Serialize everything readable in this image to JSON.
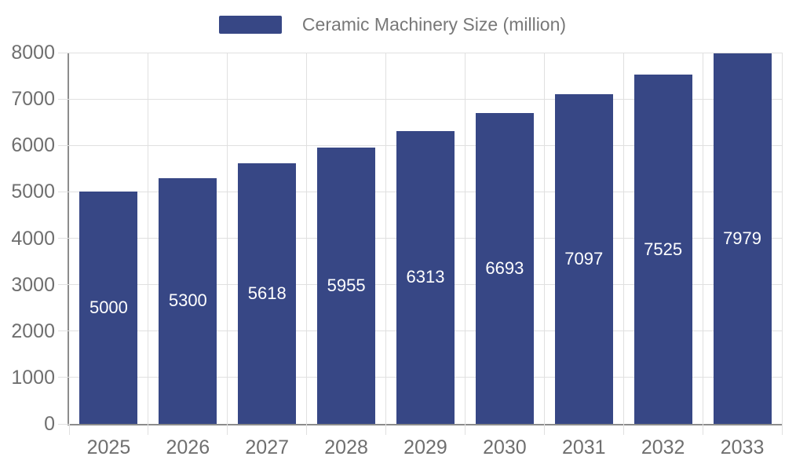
{
  "chart_data": {
    "type": "bar",
    "title": "Ceramic Machinery Size (million)",
    "categories": [
      "2025",
      "2026",
      "2027",
      "2028",
      "2029",
      "2030",
      "2031",
      "2032",
      "2033"
    ],
    "values": [
      5000,
      5300,
      5618,
      5955,
      6313,
      6693,
      7097,
      7525,
      7979
    ],
    "value_labels": [
      "5000",
      "5300",
      "5618",
      "5955",
      "6313",
      "6693",
      "7097",
      "7525",
      "7979"
    ],
    "xlabel": "",
    "ylabel": "",
    "ylim": [
      0,
      8000
    ],
    "ytick_step": 1000,
    "ytick_labels": [
      "0",
      "1000",
      "2000",
      "3000",
      "4000",
      "5000",
      "6000",
      "7000",
      "8000"
    ],
    "grid": true,
    "legend_position": "top-center",
    "legend_label": "Ceramic Machinery Size (million)",
    "colors": {
      "bar": "#374785",
      "bar_value_text": "#ffffff",
      "axis_line": "#8c8c8c",
      "gridline": "#e0e0e0",
      "tick": "#e0e0e0",
      "axis_text": "#6f6f6f",
      "legend_text": "#787878",
      "background": "#ffffff"
    }
  }
}
